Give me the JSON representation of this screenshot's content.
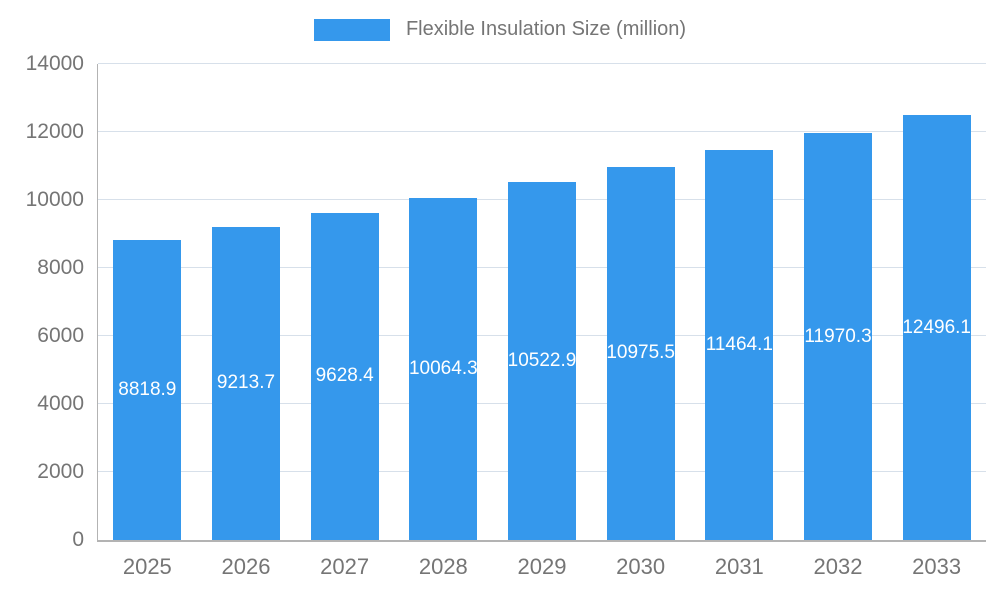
{
  "chart_data": {
    "type": "bar",
    "title": "",
    "legend": "Flexible Insulation Size (million)",
    "categories": [
      "2025",
      "2026",
      "2027",
      "2028",
      "2029",
      "2030",
      "2031",
      "2032",
      "2033"
    ],
    "values": [
      8818.9,
      9213.7,
      9628.4,
      10064.3,
      10522.9,
      10975.5,
      11464.1,
      11970.3,
      12496.1
    ],
    "xlabel": "",
    "ylabel": "",
    "ylim": [
      0,
      14000
    ],
    "ytick_step": 2000,
    "grid": true,
    "legend_position": "top",
    "bar_color": "#3598EC",
    "gridline_color": "#d7e0ea",
    "axis_color": "#b3b3b3",
    "tick_label_color": "#757575",
    "value_label_color": "#ffffff"
  }
}
